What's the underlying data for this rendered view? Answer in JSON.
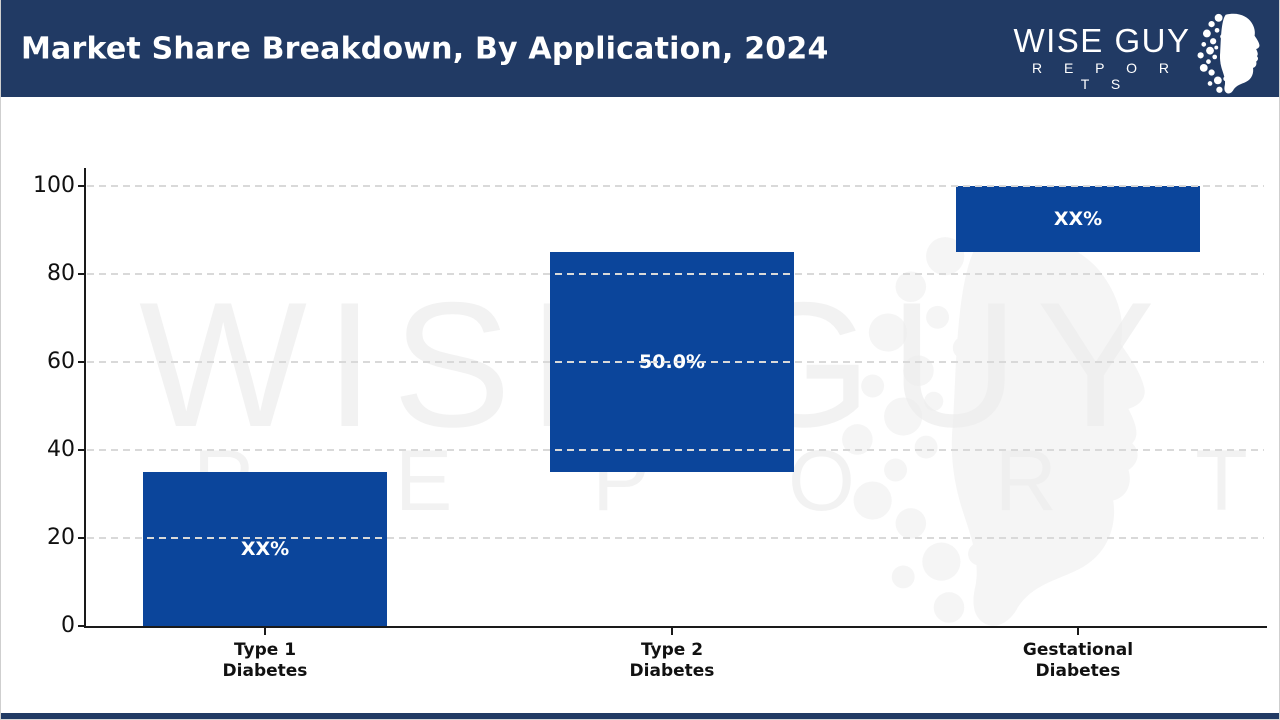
{
  "header": {
    "title": "Market Share Breakdown, By Application, 2024",
    "logo": {
      "line1": "WISE GUY",
      "line2": "REPORTS"
    }
  },
  "watermark": {
    "line1": "WISE GUY",
    "line2": "REPORTS"
  },
  "chart_data": {
    "type": "bar",
    "subtype": "waterfall",
    "title": "Market Share Breakdown, By Application, 2024",
    "categories": [
      "Type 1 Diabetes",
      "Type 2 Diabetes",
      "Gestational Diabetes"
    ],
    "segments": [
      {
        "category": "Type 1 Diabetes",
        "start": 0,
        "end": 35,
        "label": "XX%"
      },
      {
        "category": "Type 2 Diabetes",
        "start": 35,
        "end": 85,
        "label": "50.0%"
      },
      {
        "category": "Gestational Diabetes",
        "start": 85,
        "end": 100,
        "label": "XX%"
      }
    ],
    "yticks": [
      0,
      20,
      40,
      60,
      80,
      100
    ],
    "ylim": [
      0,
      104
    ],
    "xlabel": "",
    "ylabel": "",
    "grid": "dashed-horizontal",
    "legend": "none",
    "bar_color": "#0b459b",
    "grid_color": "#d9d9d9",
    "header_color": "#213a64",
    "bar_label_color": "#ffffff"
  }
}
